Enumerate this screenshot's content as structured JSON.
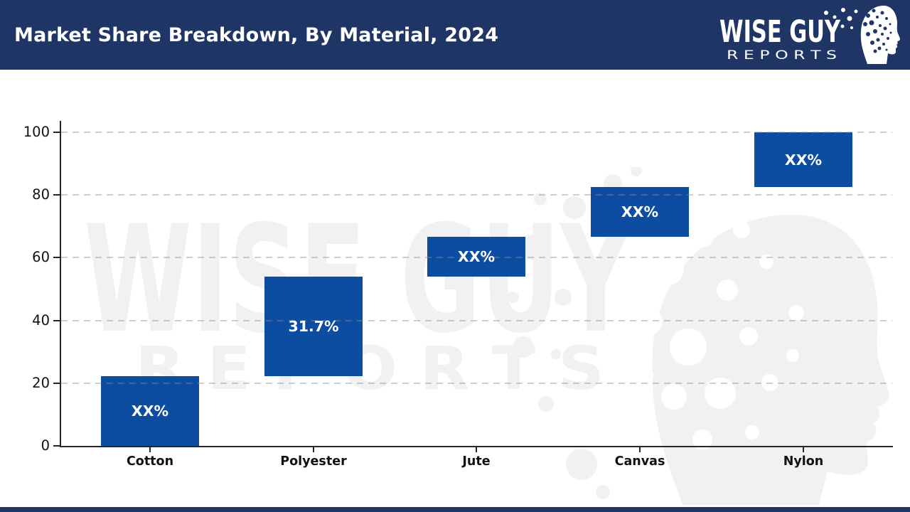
{
  "header": {
    "title": "Market Share Breakdown, By Material, 2024"
  },
  "logo": {
    "line1": "WISE GUY",
    "line2": "R E P O R T S"
  },
  "watermark": {
    "line1": "WISE GUY",
    "line2": "R E P O R T S"
  },
  "colors": {
    "header_bg": "#1e3566",
    "bar_blue": "#0d4da1",
    "axis": "#262626",
    "grid": "#8c8c8c",
    "label_text": "#111111",
    "bar_label_text": "#ffffff",
    "watermark_gray": "#f1f1f4"
  },
  "chart_data": {
    "type": "bar",
    "subtype": "waterfall",
    "title": "Market Share Breakdown, By Material, 2024",
    "xlabel": "",
    "ylabel": "",
    "ylim": [
      0,
      100
    ],
    "yticks": [
      0,
      20,
      40,
      60,
      80,
      100
    ],
    "grid": "horizontal-dashed-overlay",
    "legend": false,
    "categories": [
      "Cotton",
      "Polyester",
      "Jute",
      "Canvas",
      "Nylon"
    ],
    "bars": [
      {
        "category": "Cotton",
        "start": 0,
        "end": 22.2,
        "value_label": "XX%"
      },
      {
        "category": "Polyester",
        "start": 22.2,
        "end": 53.9,
        "value_label": "31.7%"
      },
      {
        "category": "Jute",
        "start": 53.9,
        "end": 66.7,
        "value_label": "XX%"
      },
      {
        "category": "Canvas",
        "start": 66.7,
        "end": 82.5,
        "value_label": "XX%"
      },
      {
        "category": "Nylon",
        "start": 82.5,
        "end": 100,
        "value_label": "XX%"
      }
    ]
  }
}
